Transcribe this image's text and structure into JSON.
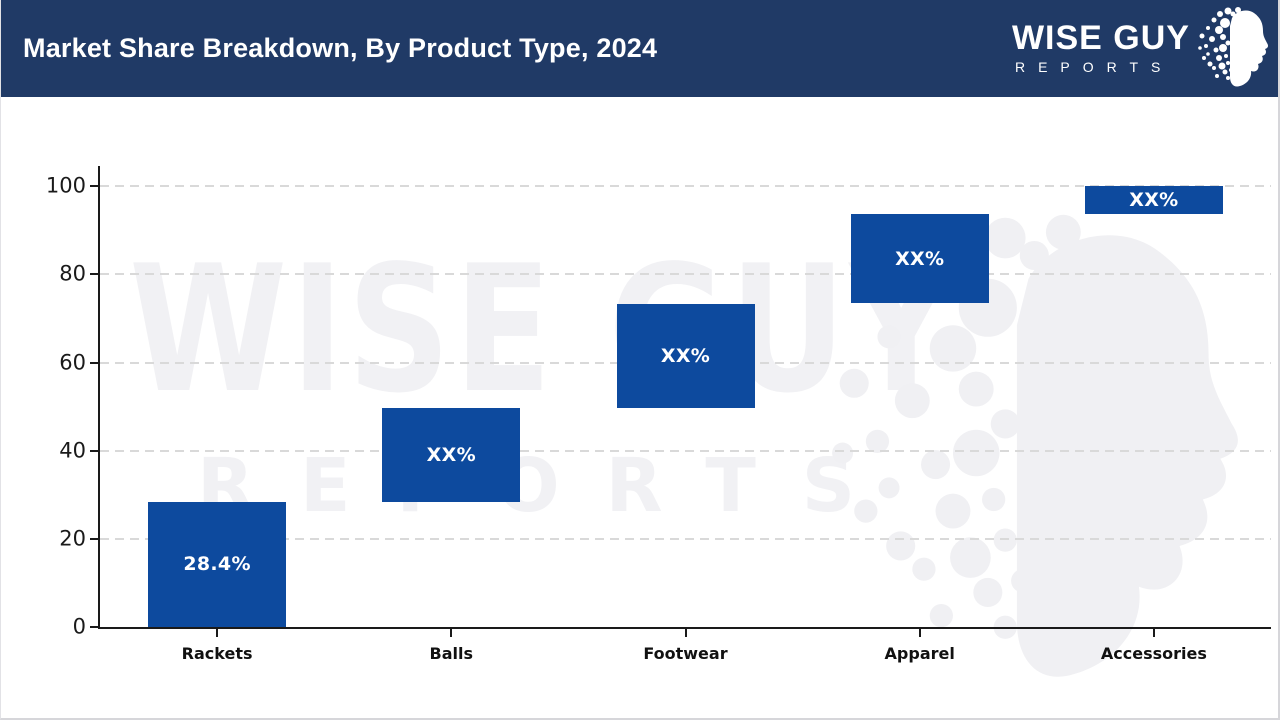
{
  "header": {
    "title": "Market Share Breakdown, By Product Type, 2024",
    "logo": {
      "primary": "WISE GUY",
      "secondary": "REPORTS"
    }
  },
  "watermark": {
    "primary": "WISE GUY",
    "secondary": "REPORTS"
  },
  "chart_data": {
    "type": "bar",
    "subtype": "waterfall",
    "title": "Market Share Breakdown, By Product Type, 2024",
    "categories": [
      "Rackets",
      "Balls",
      "Footwear",
      "Apparel",
      "Accessories"
    ],
    "segments": [
      {
        "category": "Rackets",
        "start": 0,
        "end": 28.4,
        "label": "28.4%"
      },
      {
        "category": "Balls",
        "start": 28.4,
        "end": 49.7,
        "label": "XX%"
      },
      {
        "category": "Footwear",
        "start": 49.7,
        "end": 73.4,
        "label": "XX%"
      },
      {
        "category": "Apparel",
        "start": 73.4,
        "end": 93.7,
        "label": "XX%"
      },
      {
        "category": "Accessories",
        "start": 93.7,
        "end": 100.1,
        "label": "XX%"
      }
    ],
    "y_ticks": [
      0,
      20,
      40,
      60,
      80,
      100
    ],
    "ylim": [
      0,
      104.6
    ],
    "xlabel": "",
    "ylabel": "",
    "grid": "horizontal-dashed",
    "legend": "none",
    "bar_color": "#0d4a9e",
    "bar_label_color": "#ffffff"
  },
  "colors": {
    "header_bg": "#203a66",
    "bar": "#0d4a9e",
    "gridline": "#d9d9d9",
    "axis": "#1a1a1a",
    "watermark": "#f0f0f3"
  }
}
